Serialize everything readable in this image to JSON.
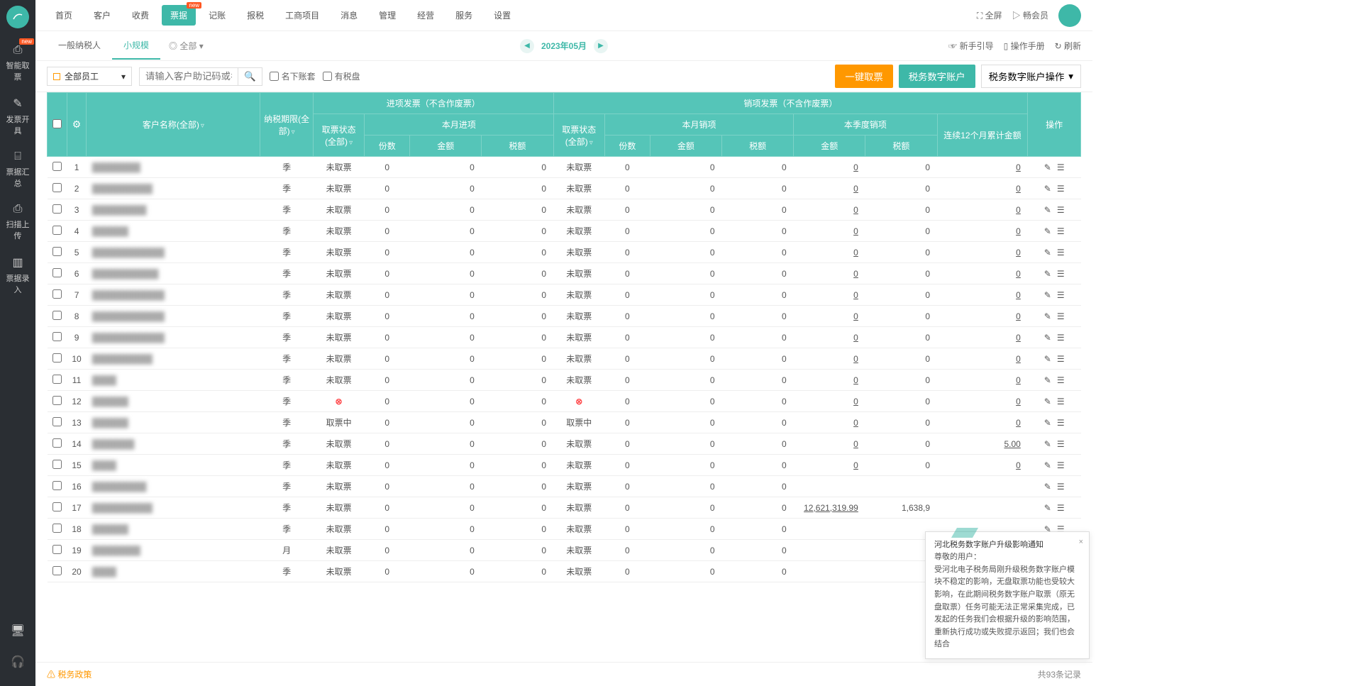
{
  "sidebar": {
    "items": [
      {
        "label": "智能取票",
        "icon": "⎙",
        "new": true
      },
      {
        "label": "发票开具",
        "icon": "✎",
        "new": false
      },
      {
        "label": "票据汇总",
        "icon": "⌸",
        "new": false
      },
      {
        "label": "扫描上传",
        "icon": "⎙",
        "new": false
      },
      {
        "label": "票据录入",
        "icon": "▥",
        "new": false
      }
    ]
  },
  "topnav": {
    "items": [
      "首页",
      "客户",
      "收费",
      "票据",
      "记账",
      "报税",
      "工商项目",
      "消息",
      "管理",
      "经营",
      "服务",
      "设置"
    ],
    "active_index": 3,
    "new_indexes": [
      3
    ],
    "fullscreen": "全屏",
    "member": "畅会员"
  },
  "subtabs": {
    "tabs": [
      "一般纳税人",
      "小规模"
    ],
    "active_index": 1,
    "location": "全部",
    "month": "2023年05月",
    "guide": "新手引导",
    "manual": "操作手册",
    "refresh": "刷新"
  },
  "filter": {
    "employee": "全部员工",
    "search_placeholder": "请输入客户助记码或名称",
    "cb1": "名下账套",
    "cb2": "有税盘",
    "btn_get": "一键取票",
    "btn_tax_acct": "税务数字账户",
    "btn_ops": "税务数字账户操作"
  },
  "table": {
    "headers": {
      "customer": "客户名称(全部)",
      "period": "纳税期限(全部)",
      "in_group": "进项发票（不含作废票）",
      "out_group": "销项发票（不含作废票）",
      "status": "取票状态(全部)",
      "this_month_in": "本月进项",
      "this_month_out": "本月销项",
      "this_quarter_out": "本季度销项",
      "cum12": "连续12个月累计金额",
      "copies": "份数",
      "amount": "金额",
      "tax": "税额",
      "actions": "操作"
    },
    "rows": [
      {
        "i": 1,
        "name": "████████",
        "period": "季",
        "in_status": "未取票",
        "in_cnt": 0,
        "in_amt": "0",
        "in_tax": "0",
        "out_status": "未取票",
        "out_cnt": 0,
        "out_amt": "0",
        "out_tax": "0",
        "q_amt": "0",
        "q_tax": "0",
        "cum": "0"
      },
      {
        "i": 2,
        "name": "██████████",
        "period": "季",
        "in_status": "未取票",
        "in_cnt": 0,
        "in_amt": "0",
        "in_tax": "0",
        "out_status": "未取票",
        "out_cnt": 0,
        "out_amt": "0",
        "out_tax": "0",
        "q_amt": "0",
        "q_tax": "0",
        "cum": "0"
      },
      {
        "i": 3,
        "name": "█████████",
        "period": "季",
        "in_status": "未取票",
        "in_cnt": 0,
        "in_amt": "0",
        "in_tax": "0",
        "out_status": "未取票",
        "out_cnt": 0,
        "out_amt": "0",
        "out_tax": "0",
        "q_amt": "0",
        "q_tax": "0",
        "cum": "0"
      },
      {
        "i": 4,
        "name": "██████",
        "period": "季",
        "in_status": "未取票",
        "in_cnt": 0,
        "in_amt": "0",
        "in_tax": "0",
        "out_status": "未取票",
        "out_cnt": 0,
        "out_amt": "0",
        "out_tax": "0",
        "q_amt": "0",
        "q_tax": "0",
        "cum": "0"
      },
      {
        "i": 5,
        "name": "████████████",
        "period": "季",
        "in_status": "未取票",
        "in_cnt": 0,
        "in_amt": "0",
        "in_tax": "0",
        "out_status": "未取票",
        "out_cnt": 0,
        "out_amt": "0",
        "out_tax": "0",
        "q_amt": "0",
        "q_tax": "0",
        "cum": "0"
      },
      {
        "i": 6,
        "name": "███████████",
        "period": "季",
        "in_status": "未取票",
        "in_cnt": 0,
        "in_amt": "0",
        "in_tax": "0",
        "out_status": "未取票",
        "out_cnt": 0,
        "out_amt": "0",
        "out_tax": "0",
        "q_amt": "0",
        "q_tax": "0",
        "cum": "0"
      },
      {
        "i": 7,
        "name": "████████████",
        "period": "季",
        "in_status": "未取票",
        "in_cnt": 0,
        "in_amt": "0",
        "in_tax": "0",
        "out_status": "未取票",
        "out_cnt": 0,
        "out_amt": "0",
        "out_tax": "0",
        "q_amt": "0",
        "q_tax": "0",
        "cum": "0"
      },
      {
        "i": 8,
        "name": "████████████",
        "period": "季",
        "in_status": "未取票",
        "in_cnt": 0,
        "in_amt": "0",
        "in_tax": "0",
        "out_status": "未取票",
        "out_cnt": 0,
        "out_amt": "0",
        "out_tax": "0",
        "q_amt": "0",
        "q_tax": "0",
        "cum": "0"
      },
      {
        "i": 9,
        "name": "████████████",
        "period": "季",
        "in_status": "未取票",
        "in_cnt": 0,
        "in_amt": "0",
        "in_tax": "0",
        "out_status": "未取票",
        "out_cnt": 0,
        "out_amt": "0",
        "out_tax": "0",
        "q_amt": "0",
        "q_tax": "0",
        "cum": "0"
      },
      {
        "i": 10,
        "name": "██████████",
        "period": "季",
        "in_status": "未取票",
        "in_cnt": 0,
        "in_amt": "0",
        "in_tax": "0",
        "out_status": "未取票",
        "out_cnt": 0,
        "out_amt": "0",
        "out_tax": "0",
        "q_amt": "0",
        "q_tax": "0",
        "cum": "0"
      },
      {
        "i": 11,
        "name": "████",
        "period": "季",
        "in_status": "未取票",
        "in_cnt": 0,
        "in_amt": "0",
        "in_tax": "0",
        "out_status": "未取票",
        "out_cnt": 0,
        "out_amt": "0",
        "out_tax": "0",
        "q_amt": "0",
        "q_tax": "0",
        "cum": "0"
      },
      {
        "i": 12,
        "name": "██████",
        "period": "季",
        "in_status": "⊗",
        "in_err": true,
        "in_cnt": 0,
        "in_amt": "0",
        "in_tax": "0",
        "out_status": "⊗",
        "out_err": true,
        "out_cnt": 0,
        "out_amt": "0",
        "out_tax": "0",
        "q_amt": "0",
        "q_tax": "0",
        "cum": "0"
      },
      {
        "i": 13,
        "name": "██████",
        "period": "季",
        "in_status": "取票中",
        "in_cnt": 0,
        "in_amt": "0",
        "in_tax": "0",
        "out_status": "取票中",
        "out_cnt": 0,
        "out_amt": "0",
        "out_tax": "0",
        "q_amt": "0",
        "q_tax": "0",
        "cum": "0"
      },
      {
        "i": 14,
        "name": "███████",
        "period": "季",
        "in_status": "未取票",
        "in_cnt": 0,
        "in_amt": "0",
        "in_tax": "0",
        "out_status": "未取票",
        "out_cnt": 0,
        "out_amt": "0",
        "out_tax": "0",
        "q_amt": "0",
        "q_tax": "0",
        "cum": "5.00"
      },
      {
        "i": 15,
        "name": "████",
        "period": "季",
        "in_status": "未取票",
        "in_cnt": 0,
        "in_amt": "0",
        "in_tax": "0",
        "out_status": "未取票",
        "out_cnt": 0,
        "out_amt": "0",
        "out_tax": "0",
        "q_amt": "0",
        "q_tax": "0",
        "cum": "0"
      },
      {
        "i": 16,
        "name": "█████████",
        "period": "季",
        "in_status": "未取票",
        "in_cnt": 0,
        "in_amt": "0",
        "in_tax": "0",
        "out_status": "未取票",
        "out_cnt": 0,
        "out_amt": "0",
        "out_tax": "0",
        "q_amt": "",
        "q_tax": "",
        "cum": ""
      },
      {
        "i": 17,
        "name": "██████████",
        "period": "季",
        "in_status": "未取票",
        "in_cnt": 0,
        "in_amt": "0",
        "in_tax": "0",
        "out_status": "未取票",
        "out_cnt": 0,
        "out_amt": "0",
        "out_tax": "0",
        "q_amt": "12,621,319.99",
        "q_tax": "1,638,9",
        "cum": ""
      },
      {
        "i": 18,
        "name": "██████",
        "period": "季",
        "in_status": "未取票",
        "in_cnt": 0,
        "in_amt": "0",
        "in_tax": "0",
        "out_status": "未取票",
        "out_cnt": 0,
        "out_amt": "0",
        "out_tax": "0",
        "q_amt": "",
        "q_tax": "",
        "cum": ""
      },
      {
        "i": 19,
        "name": "████████",
        "period": "月",
        "in_status": "未取票",
        "in_cnt": 0,
        "in_amt": "0",
        "in_tax": "0",
        "out_status": "未取票",
        "out_cnt": 0,
        "out_amt": "0",
        "out_tax": "0",
        "q_amt": "",
        "q_tax": "",
        "cum": ""
      },
      {
        "i": 20,
        "name": "████",
        "period": "季",
        "in_status": "未取票",
        "in_cnt": 0,
        "in_amt": "0",
        "in_tax": "0",
        "out_status": "未取票",
        "out_cnt": 0,
        "out_amt": "0",
        "out_tax": "0",
        "q_amt": "",
        "q_tax": "",
        "cum": ""
      }
    ]
  },
  "footer": {
    "policies": "税务政策",
    "total": "共93条记录"
  },
  "notification": {
    "title": "河北税务数字账户升级影响通知",
    "greeting": "尊敬的用户：",
    "body": "受河北电子税务局刚升级税务数字账户模块不稳定的影响，无盘取票功能也受较大影响，在此期间税务数字账户取票（原无盘取票）任务可能无法正常采集完成，已发起的任务我们会根据升级的影响范围，重新执行成功或失败提示返回；我们也会结合"
  }
}
